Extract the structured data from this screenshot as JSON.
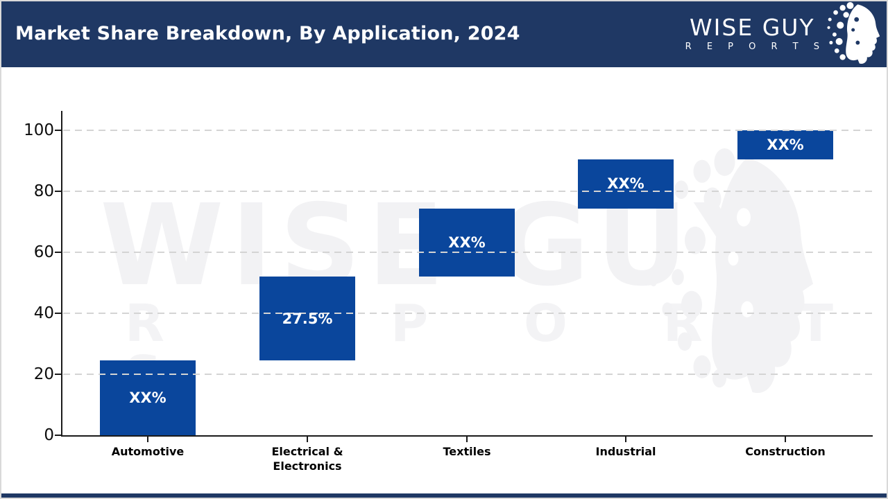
{
  "page": {
    "header": {
      "title": "Market Share Breakdown, By Application, 2024",
      "brand": {
        "name": "WISE GUY",
        "sub": "R E P O R T S"
      }
    },
    "watermark": {
      "line1": "WISE GUY",
      "line2": "R E P O R T S"
    }
  },
  "chart_data": {
    "type": "bar",
    "subtype": "floating-segment-waterfall",
    "title": "Market Share Breakdown, By Application, 2024",
    "categories": [
      "Automotive",
      "Electrical & Electronics",
      "Textiles",
      "Industrial",
      "Construction"
    ],
    "segments": [
      {
        "category": "Automotive",
        "start": 0,
        "end": 24.5,
        "value": 24.5,
        "label": "XX%"
      },
      {
        "category": "Electrical & Electronics",
        "start": 24.5,
        "end": 52,
        "value": 27.5,
        "label": "27.5%"
      },
      {
        "category": "Textiles",
        "start": 52,
        "end": 74.3,
        "value": 22.3,
        "label": "XX%"
      },
      {
        "category": "Industrial",
        "start": 74.3,
        "end": 90.5,
        "value": 16.2,
        "label": "XX%"
      },
      {
        "category": "Construction",
        "start": 90.5,
        "end": 100,
        "value": 9.5,
        "label": "XX%"
      }
    ],
    "xlabel": "",
    "ylabel": "",
    "yticks": [
      0,
      20,
      40,
      60,
      80,
      100
    ],
    "ylim": [
      0,
      105
    ],
    "grid": "horizontal-dashed",
    "legend": "none",
    "bar_color": "#0a469c",
    "bar_label_color": "#ffffff"
  },
  "colors": {
    "header_bg": "#1f3864",
    "footer_bg": "#1f3864",
    "bar": "#0a469c",
    "watermark": "#f2f2f4",
    "gridline": "#d4d4d4",
    "axis": "#1a1a1a",
    "text": "#000000",
    "page_border": "#d9d9d9"
  }
}
